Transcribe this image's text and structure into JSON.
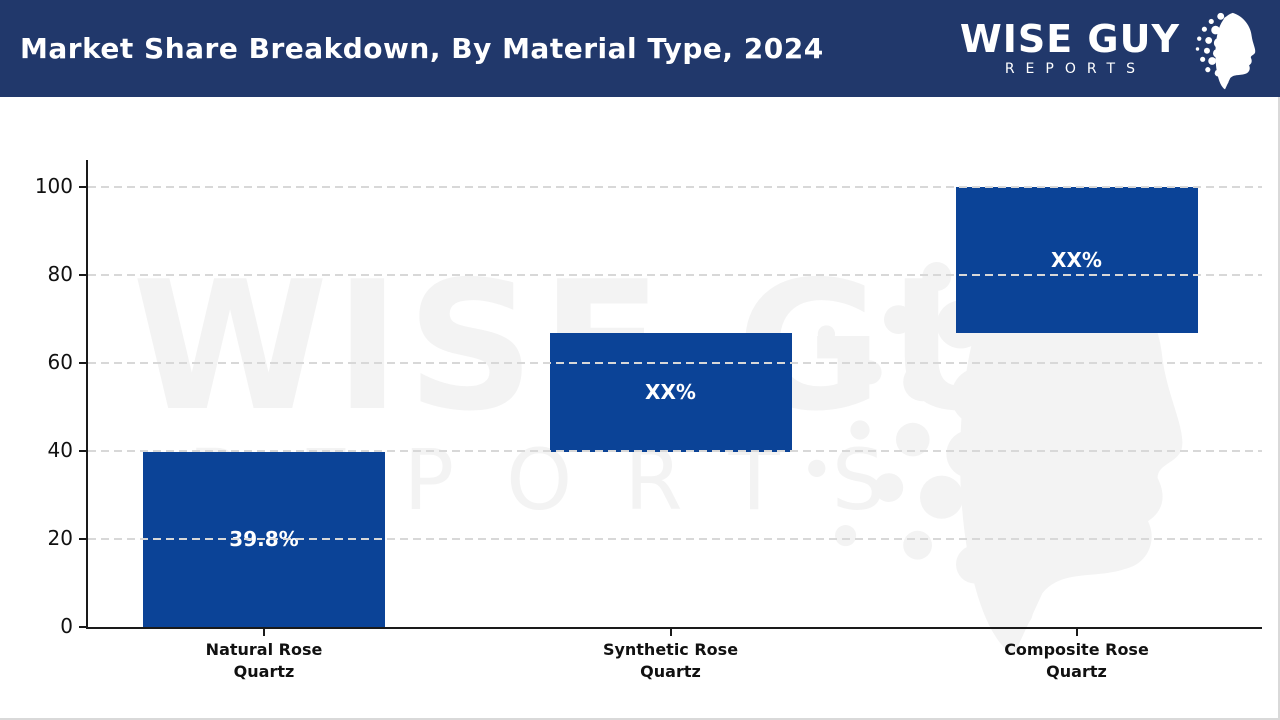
{
  "header": {
    "title": "Market Share Breakdown, By Material Type, 2024",
    "logo": {
      "line1": "WISE GUY",
      "line2": "REPORTS"
    }
  },
  "watermark": {
    "line1": "WISE GUY",
    "line2": "REPORTS"
  },
  "colors": {
    "header_bg": "#21386B",
    "bar_fill": "#0B4397",
    "bar_label": "#FFFFFF",
    "gridline": "#D8D8D8",
    "axis": "#1A1A1A",
    "watermark": "#F3F3F3"
  },
  "chart_data": {
    "type": "bar",
    "subtype": "floating-waterfall",
    "title": "Market Share Breakdown, By Material Type, 2024",
    "xlabel": "",
    "ylabel": "",
    "ylim": [
      0,
      100
    ],
    "yticks": [
      0,
      20,
      40,
      60,
      80,
      100
    ],
    "grid": "horizontal-dashed",
    "legend": "none",
    "categories": [
      [
        "Natural Rose",
        "Quartz"
      ],
      [
        "Synthetic Rose",
        "Quartz"
      ],
      [
        "Composite Rose",
        "Quartz"
      ]
    ],
    "bars": [
      {
        "category": "Natural Rose Quartz",
        "start": 0,
        "end": 39.8,
        "label": "39.8%"
      },
      {
        "category": "Synthetic Rose Quartz",
        "start": 39.8,
        "end": 66.7,
        "label": "XX%"
      },
      {
        "category": "Composite Rose Quartz",
        "start": 66.7,
        "end": 100,
        "label": "XX%"
      }
    ]
  }
}
